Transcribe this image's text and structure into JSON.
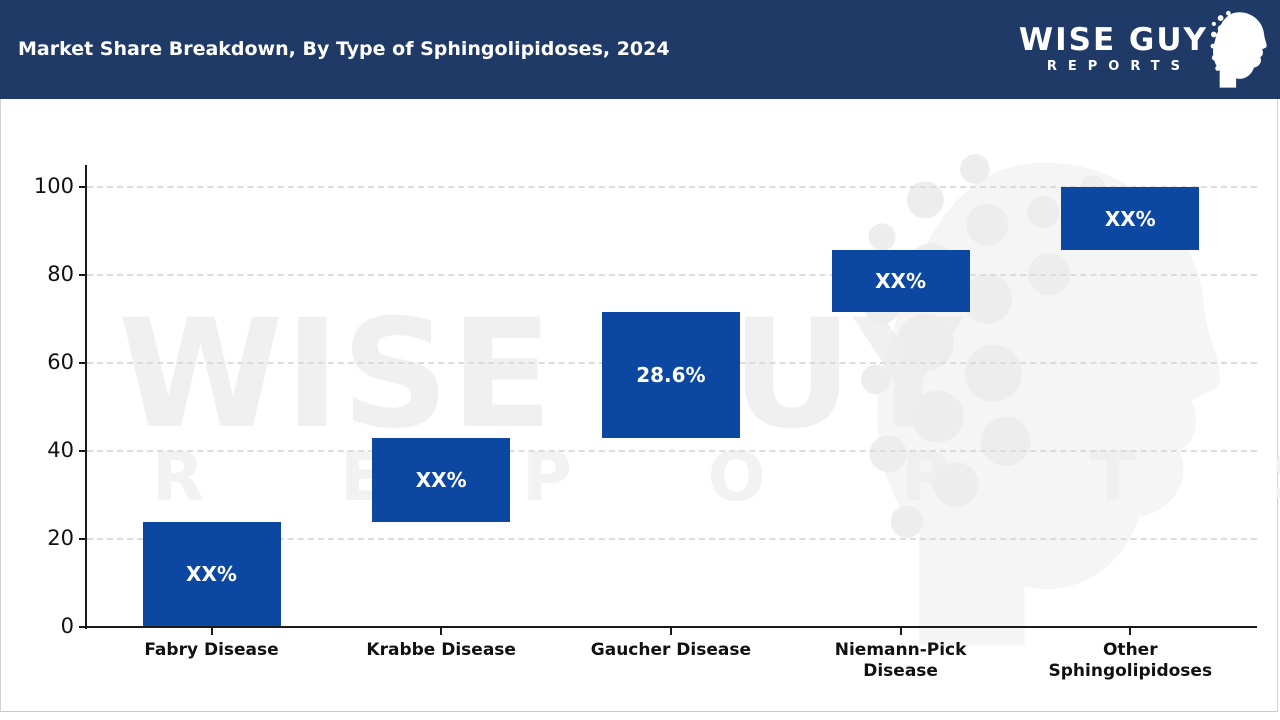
{
  "header": {
    "title": "Market Share Breakdown, By Type of Sphingolipidoses, 2024",
    "logo_line1": "WISE GUY",
    "logo_line2": "REPORTS",
    "bg_color": "#1f3a67"
  },
  "watermark": {
    "line1": "WISE GUY",
    "line2": "R E P O R T S"
  },
  "chart_data": {
    "type": "bar",
    "subtype": "waterfall",
    "title": "Market Share Breakdown, By Type of Sphingolipidoses, 2024",
    "categories": [
      "Fabry Disease",
      "Krabbe Disease",
      "Gaucher Disease",
      "Niemann-Pick Disease",
      "Other Sphingolipidoses"
    ],
    "category_lines": [
      [
        "Fabry Disease"
      ],
      [
        "Krabbe Disease"
      ],
      [
        "Gaucher Disease"
      ],
      [
        "Niemann-Pick",
        "Disease"
      ],
      [
        "Other",
        "Sphingolipidoses"
      ]
    ],
    "bars": [
      {
        "category": "Fabry Disease",
        "label": "XX%",
        "start": 0,
        "end": 23.9
      },
      {
        "category": "Krabbe Disease",
        "label": "XX%",
        "start": 23.9,
        "end": 43.0
      },
      {
        "category": "Gaucher Disease",
        "label": "28.6%",
        "start": 43.0,
        "end": 71.6
      },
      {
        "category": "Niemann-Pick Disease",
        "label": "XX%",
        "start": 71.6,
        "end": 85.6
      },
      {
        "category": "Other Sphingolipidoses",
        "label": "XX%",
        "start": 85.6,
        "end": 100
      }
    ],
    "y_ticks": [
      "0",
      "20",
      "40",
      "60",
      "80",
      "100"
    ],
    "ylim": [
      0,
      105
    ],
    "xlabel": "",
    "ylabel": "",
    "grid": "horizontal-dashed",
    "legend": "none",
    "bar_color": "#0c47a1",
    "grid_color": "#dcdcdc",
    "axis_color": "#1a1a1a",
    "label_color": "#ffffff"
  }
}
